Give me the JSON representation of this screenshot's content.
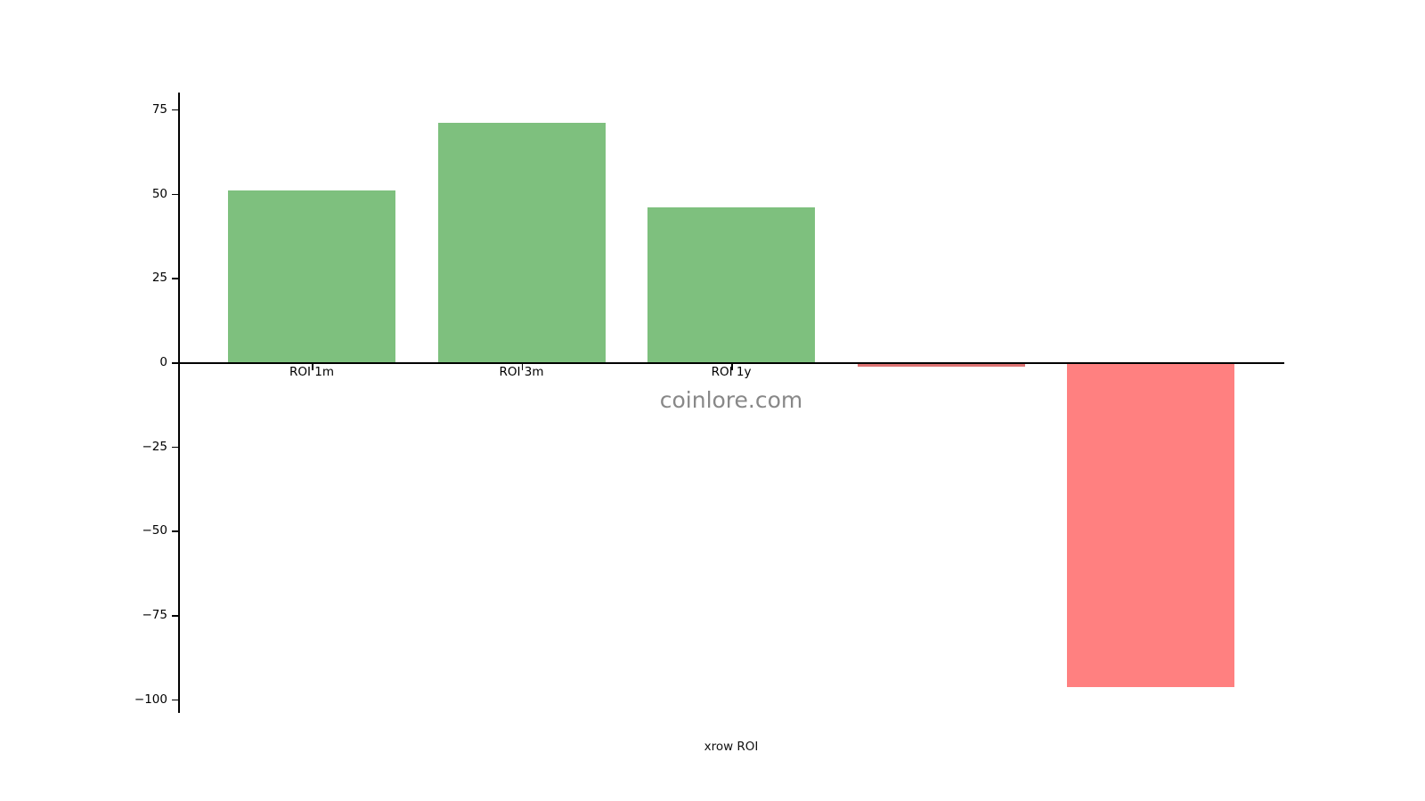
{
  "watermark": "coinlore.com",
  "chart_data": {
    "type": "bar",
    "title": "",
    "xlabel": "xrow ROI",
    "ylabel": "",
    "categories": [
      "ROI 1m",
      "ROI 3m",
      "ROI 1y",
      "",
      ""
    ],
    "values": [
      51,
      71,
      46,
      -1,
      -96
    ],
    "bar_colors": [
      "#7ec07e",
      "#7ec07e",
      "#7ec07e",
      "#de7373",
      "#ff8080"
    ],
    "y_ticks": [
      75,
      50,
      25,
      0,
      -25,
      -50,
      -75,
      -100
    ],
    "y_tick_labels": [
      "75",
      "50",
      "25",
      "0",
      "−25",
      "−50",
      "−75",
      "−100"
    ],
    "ylim": [
      -104,
      80
    ],
    "grid": false,
    "legend": "none",
    "colors": {
      "positive": "#7ec07e",
      "negative": "#ff8080",
      "negative_small": "#de7373",
      "axis": "#000000",
      "watermark": "#888888"
    }
  }
}
